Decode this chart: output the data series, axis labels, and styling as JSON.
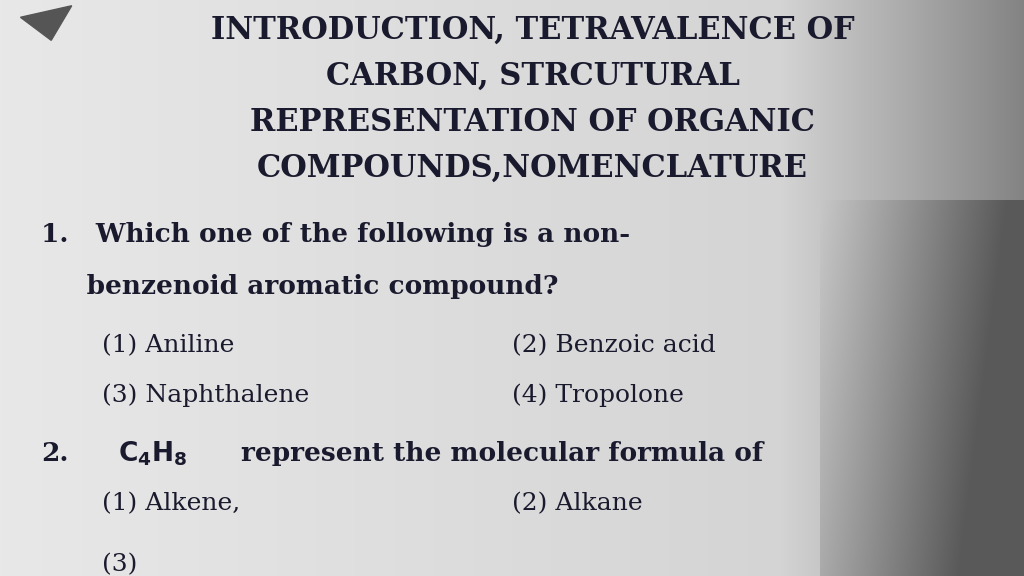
{
  "background_color": "#e8e8e8",
  "title_line1": "INTRODUCTION, TETRAVALENCE OF",
  "title_line2": "CARBON, STRCUTURAL",
  "title_line3": "REPRESENTATION OF ORGANIC",
  "title_line4": "COMPOUNDS,NOMENCLATURE",
  "q1_line1": "1.   Which one of the following is a non-",
  "q1_line2": "     benzenoid aromatic compound?",
  "q1_opt1": "(1) Aniline",
  "q1_opt2": "(2) Benzoic acid",
  "q1_opt3": "(3) Naphthalene",
  "q1_opt4": "(4) Tropolone",
  "q2_line": "2.   represent the molecular formula of",
  "q2_formula": "C₄H₈",
  "q2_opt1": "(1) Alkene,",
  "q2_opt2": "(2) Alkane",
  "text_color": "#1a1a2e",
  "title_color": "#1a1a2e",
  "serif_font": "DejaVu Serif"
}
